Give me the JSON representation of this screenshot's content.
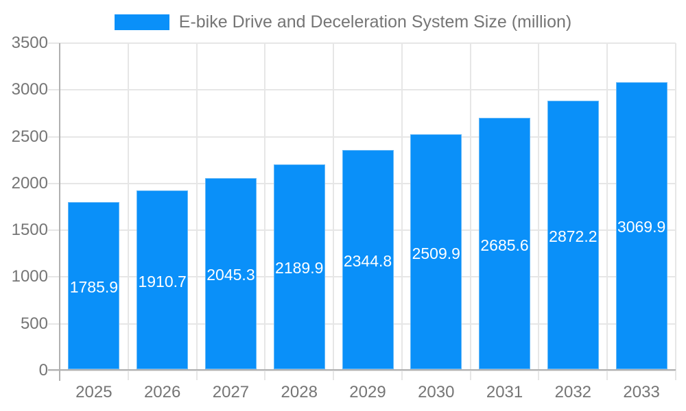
{
  "chart_data": {
    "type": "bar",
    "title": "E-bike Drive and Deceleration System Size (million)",
    "categories": [
      "2025",
      "2026",
      "2027",
      "2028",
      "2029",
      "2030",
      "2031",
      "2032",
      "2033"
    ],
    "values": [
      1785.9,
      1910.7,
      2045.3,
      2189.9,
      2344.8,
      2509.9,
      2685.6,
      2872.2,
      3069.9
    ],
    "value_labels": [
      "1785.9",
      "1910.7",
      "2045.3",
      "2189.9",
      "2344.8",
      "2509.9",
      "2685.6",
      "2872.2",
      "3069.9"
    ],
    "xlabel": "",
    "ylabel": "",
    "ylim": [
      0,
      3500
    ],
    "yticks": [
      0,
      500,
      1000,
      1500,
      2000,
      2500,
      3000,
      3500
    ],
    "ytick_labels": [
      "0",
      "500",
      "1000",
      "1500",
      "2000",
      "2500",
      "3000",
      "3500"
    ],
    "grid": true,
    "legend_position": "top",
    "colors": {
      "bar_fill": "#0a90f9",
      "bar_edge": "#66b8f7",
      "grid_line": "#e6e6e6",
      "axis_line": "#b0b0b0",
      "tick_text": "#757575",
      "legend_text": "#757575",
      "bar_label_text": "#ffffff",
      "background": "#ffffff"
    }
  }
}
